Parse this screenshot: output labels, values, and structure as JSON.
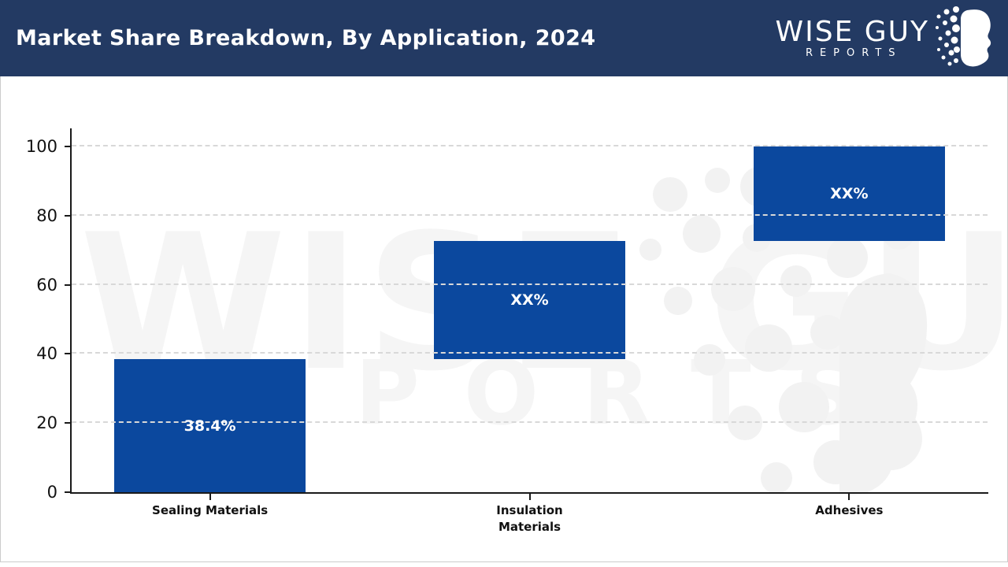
{
  "header": {
    "title": "Market Share Breakdown, By Application, 2024",
    "logo": {
      "line1": "WISE GUY",
      "line2": "REPORTS"
    }
  },
  "watermark": {
    "line1": "WISE GUY",
    "line2": "REPORTS"
  },
  "colors": {
    "header_bg": "#233a63",
    "bar": "#0b489e",
    "bar_label": "#ffffff",
    "gridline": "#d8d8d8",
    "watermark": "#f5f5f5"
  },
  "chart_data": {
    "type": "bar",
    "subtype": "floating-stacked-percentage",
    "title": "Market Share Breakdown, By Application, 2024",
    "categories": [
      "Sealing Materials",
      "Insulation\nMaterials",
      "Adhesives"
    ],
    "segments": [
      {
        "category": "Sealing Materials",
        "start": 0,
        "end": 38.4,
        "label": "38.4%"
      },
      {
        "category": "Insulation Materials",
        "start": 38.4,
        "end": 72.7,
        "label": "XX%"
      },
      {
        "category": "Adhesives",
        "start": 72.7,
        "end": 100,
        "label": "XX%"
      }
    ],
    "ylim": [
      0,
      100
    ],
    "yticks": [
      0,
      20,
      40,
      60,
      80,
      100
    ],
    "xlabel": "",
    "ylabel": "",
    "grid": "horizontal-dashed",
    "legend": "none"
  }
}
